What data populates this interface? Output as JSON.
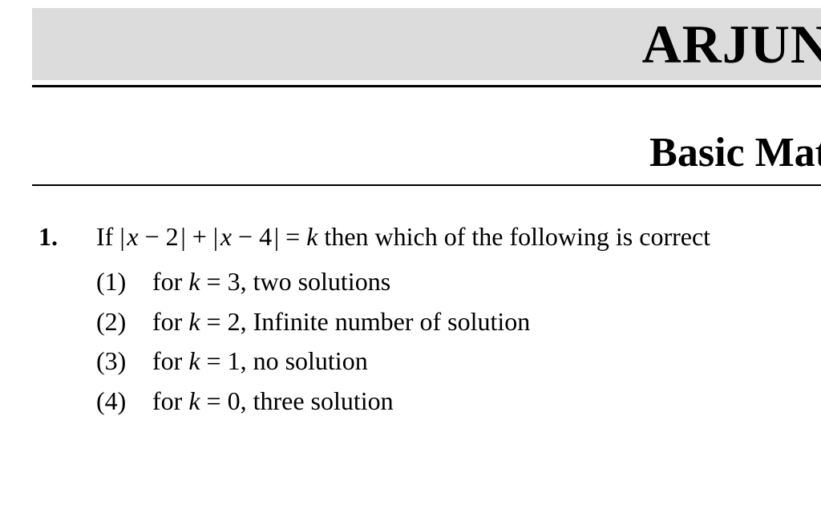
{
  "header": {
    "banner_title": "ARJUN",
    "section_title": "Basic Mat"
  },
  "question": {
    "number": "1.",
    "stem_prefix": "If ",
    "equation": "| x − 2 | + | x − 4 | = k",
    "stem_suffix": " then which of the following is correct",
    "options": [
      {
        "num": "(1)",
        "text_before": "for ",
        "math": "k = 3",
        "text_after": ", two solutions"
      },
      {
        "num": "(2)",
        "text_before": "for ",
        "math": "k = 2",
        "text_after": ", Infinite number of solution"
      },
      {
        "num": "(3)",
        "text_before": "for ",
        "math": "k = 1",
        "text_after": ", no solution"
      },
      {
        "num": "(4)",
        "text_before": "for ",
        "math": "k = 0",
        "text_after": ", three solution"
      }
    ]
  },
  "colors": {
    "banner_bg": "#dcdcdc",
    "text": "#000000",
    "page_bg": "#ffffff"
  }
}
